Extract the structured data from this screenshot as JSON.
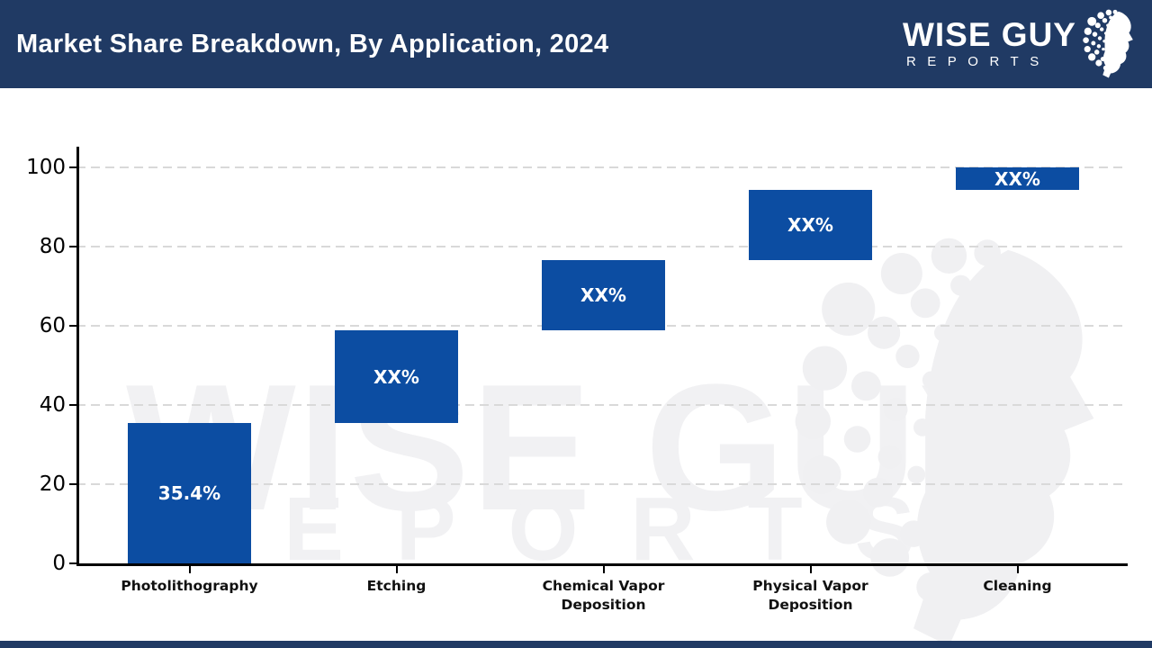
{
  "header": {
    "title": "Market Share Breakdown, By Application, 2024",
    "logo": {
      "brand_line1": "WISE GUY",
      "brand_line2": "REPORTS"
    }
  },
  "watermark": {
    "line1": "WISE GUY",
    "line2": "REPORTS"
  },
  "chart_data": {
    "type": "bar",
    "variant": "waterfall",
    "title": "Market Share Breakdown, By Application, 2024",
    "categories": [
      "Photolithography",
      "Etching",
      "Chemical Vapor\nDeposition",
      "Physical Vapor\nDeposition",
      "Cleaning"
    ],
    "bars": [
      {
        "category": "Photolithography",
        "start": 0,
        "end": 35.4,
        "label": "35.4%"
      },
      {
        "category": "Etching",
        "start": 35.4,
        "end": 58.9,
        "label": "XX%"
      },
      {
        "category": "Chemical Vapor Deposition",
        "start": 58.9,
        "end": 76.6,
        "label": "XX%"
      },
      {
        "category": "Physical Vapor Deposition",
        "start": 76.6,
        "end": 94.3,
        "label": "XX%"
      },
      {
        "category": "Cleaning",
        "start": 94.3,
        "end": 100,
        "label": "XX%"
      }
    ],
    "yticks": [
      0,
      20,
      40,
      60,
      80,
      100
    ],
    "ylim": [
      0,
      105
    ],
    "xlabel": "",
    "ylabel": "",
    "grid": "horizontal-dashed",
    "legend": "none",
    "colors": {
      "bar": "#0c4da2",
      "bar_label": "#ffffff",
      "grid": "#d9d9d9",
      "axis": "#000000",
      "header_bg": "#203a64",
      "watermark": "#f0f0f2"
    }
  }
}
